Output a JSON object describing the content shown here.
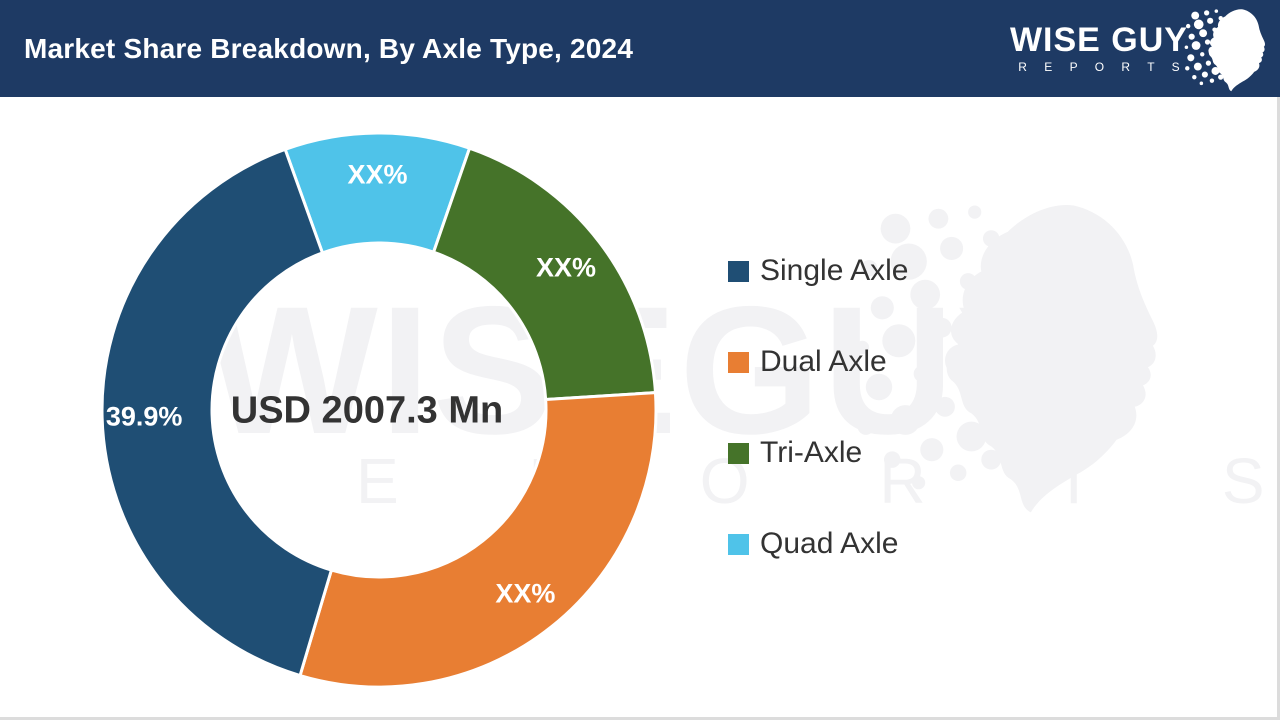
{
  "header": {
    "title": "Market Share Breakdown, By Axle Type, 2024",
    "logo": {
      "line1": "WISE GUY",
      "line2": "R E P O R T S",
      "face_icon": "wiseguy-face-icon"
    }
  },
  "watermark": {
    "line1": "WISEGUY",
    "line2": "R E P O R T S"
  },
  "colors": {
    "header_bg": "#1e3a64",
    "single_axle": "#1f4e74",
    "dual_axle": "#e87e33",
    "tri_axle": "#457329",
    "quad_axle": "#4fc3e9",
    "center_text": "#333333",
    "slice_label_text": "#ffffff",
    "watermark": "#f2f2f4",
    "border": "#dcdcdc"
  },
  "chart_data": {
    "type": "pie",
    "subtype": "donut",
    "title": "Market Share Breakdown, By Axle Type, 2024",
    "center_label": "USD 2007.3 Mn",
    "legend_position": "right",
    "rotation_deg": -19.8,
    "label_radius": 235,
    "slices": [
      {
        "name": "Quad Axle",
        "label": "XX%",
        "pct": 10.8,
        "color": "#4fc3e9"
      },
      {
        "name": "Tri-Axle",
        "label": "XX%",
        "pct": 18.7,
        "color": "#457329"
      },
      {
        "name": "Dual Axle",
        "label": "XX%",
        "pct": 30.6,
        "color": "#e87e33"
      },
      {
        "name": "Single Axle",
        "label": "39.9%",
        "pct": 39.9,
        "color": "#1f4e74"
      }
    ],
    "legend": [
      {
        "label": "Single Axle",
        "color": "#1f4e74"
      },
      {
        "label": "Dual Axle",
        "color": "#e87e33"
      },
      {
        "label": "Tri-Axle",
        "color": "#457329"
      },
      {
        "label": "Quad Axle",
        "color": "#4fc3e9"
      }
    ]
  }
}
